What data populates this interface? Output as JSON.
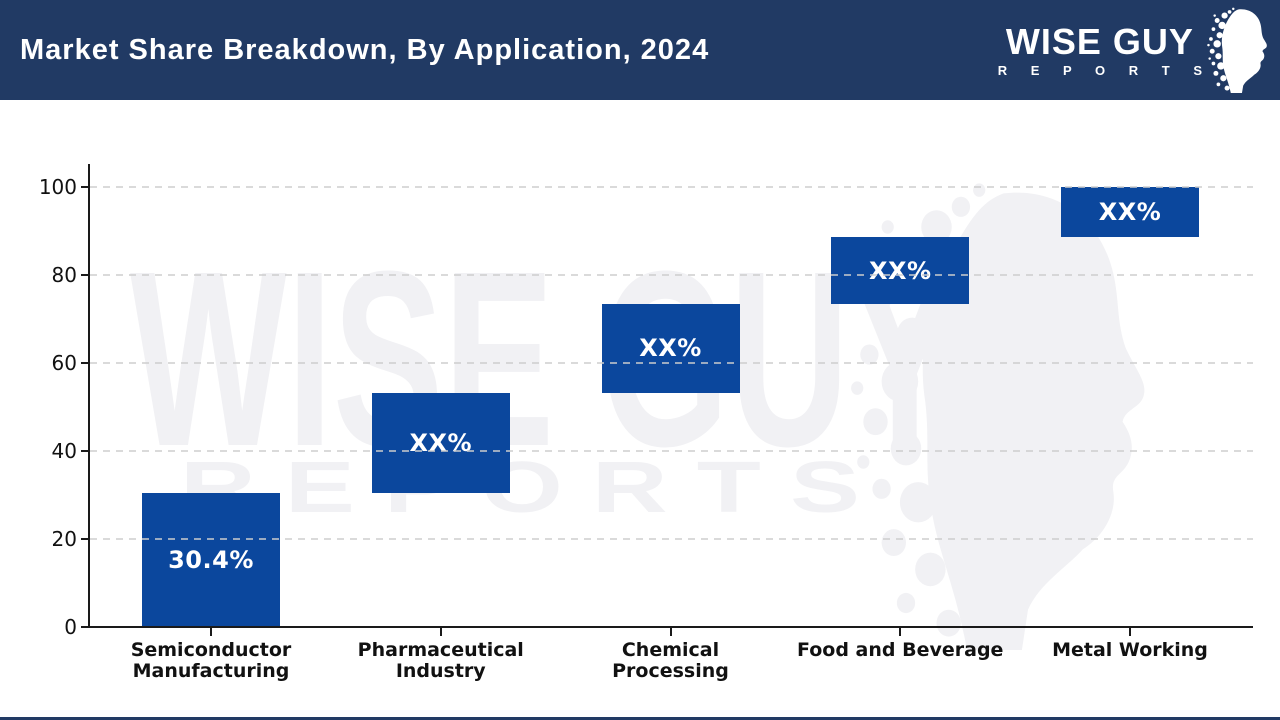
{
  "header": {
    "title": "Market Share Breakdown, By Application, 2024",
    "logo": {
      "line1": "WISE GUY",
      "line2": "R E P O R T S"
    }
  },
  "watermark": {
    "line1": "WISE GUY",
    "line2": "R E P O R T S"
  },
  "colors": {
    "header_navy": "#213a64",
    "bar_blue": "#0b479d",
    "gridline_gray": "#cdcdcd",
    "watermark_gray": "#f1f1f4"
  },
  "chart_data": {
    "type": "bar",
    "subtype": "waterfall",
    "title": "Market Share Breakdown, By Application, 2024",
    "xlabel": "",
    "ylabel": "",
    "ylim": [
      0,
      105
    ],
    "yticks": [
      0,
      20,
      40,
      60,
      80,
      100
    ],
    "grid": "dashed-horizontal, drawn over bars",
    "legend": "none",
    "bar_color": "#0b479d",
    "categories": [
      "Semiconductor Manufacturing",
      "Pharmaceutical Industry",
      "Chemical Processing",
      "Food and Beverage",
      "Metal Working"
    ],
    "segments": [
      {
        "label": "Semiconductor Manufacturing",
        "start": 0,
        "end": 30.4,
        "value_label": "30.4%"
      },
      {
        "label": "Pharmaceutical Industry",
        "start": 30.4,
        "end": 53.2,
        "value_label": "XX%"
      },
      {
        "label": "Chemical Processing",
        "start": 53.2,
        "end": 73.4,
        "value_label": "XX%"
      },
      {
        "label": "Food and Beverage",
        "start": 73.4,
        "end": 88.6,
        "value_label": "XX%"
      },
      {
        "label": "Metal Working",
        "start": 88.6,
        "end": 100,
        "value_label": "XX%"
      }
    ]
  }
}
